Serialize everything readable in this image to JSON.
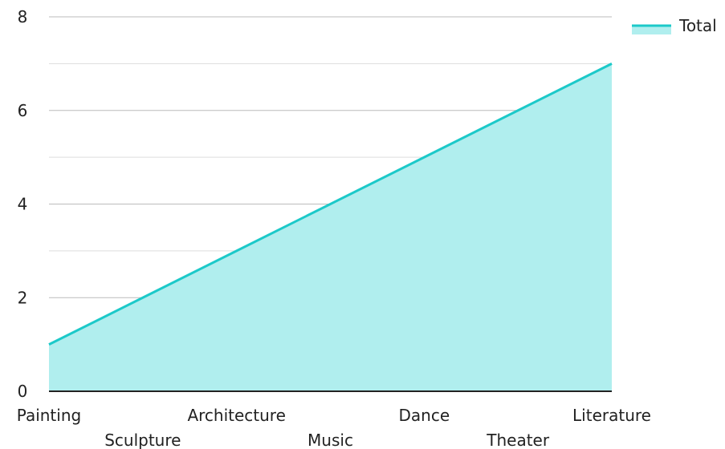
{
  "chart_data": {
    "type": "area",
    "categories": [
      "Painting",
      "Sculpture",
      "Architecture",
      "Music",
      "Dance",
      "Theater",
      "Literature"
    ],
    "series": [
      {
        "name": "Total",
        "values": [
          1,
          2,
          3,
          4,
          5,
          6,
          7
        ]
      }
    ],
    "ylim": [
      0,
      8
    ],
    "yticks": [
      0,
      2,
      4,
      6,
      8
    ],
    "minor_gridlines": [
      1,
      3,
      5,
      7
    ],
    "grid": true,
    "legend_position": "top-right",
    "colors": {
      "line": "#1cc9c9",
      "fill": "#b0eeee",
      "grid": "#bbbbbb",
      "minor_grid": "#dddddd",
      "axis": "#222222"
    }
  }
}
